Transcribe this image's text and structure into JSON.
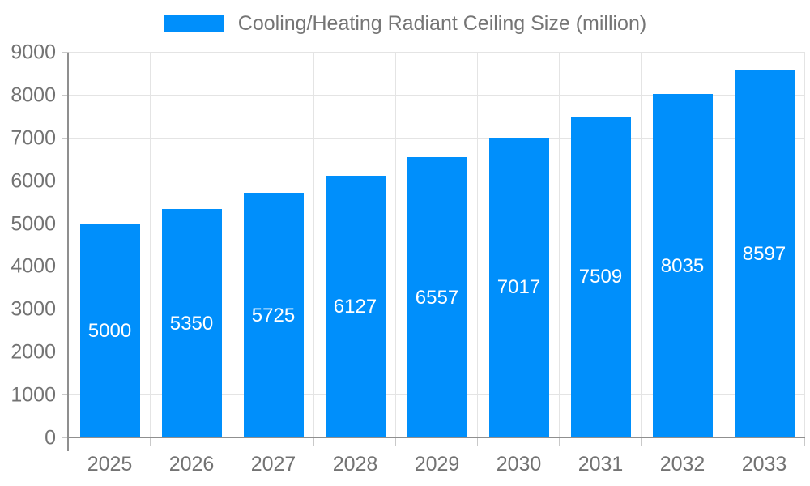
{
  "chart_data": {
    "type": "bar",
    "legend": "Cooling/Heating Radiant Ceiling Size (million)",
    "legend_position": "top",
    "categories": [
      "2025",
      "2026",
      "2027",
      "2028",
      "2029",
      "2030",
      "2031",
      "2032",
      "2033"
    ],
    "values": [
      5000,
      5350,
      5725,
      6127,
      6557,
      7017,
      7509,
      8035,
      8597
    ],
    "xlabel": "",
    "ylabel": "",
    "ylim": [
      0,
      9000
    ],
    "yticks": [
      0,
      1000,
      2000,
      3000,
      4000,
      5000,
      6000,
      7000,
      8000,
      9000
    ],
    "grid": true,
    "value_labels_inside_bars": true,
    "colors": {
      "bar": "#008FFB",
      "value_label": "#FFFFFF",
      "axis_label": "#737373",
      "legend_text": "#757575",
      "axis_line": "#8F8F8F",
      "gridline": "#E4E4E4",
      "tick": "#C9C9C9",
      "background": "#FFFFFF"
    }
  }
}
